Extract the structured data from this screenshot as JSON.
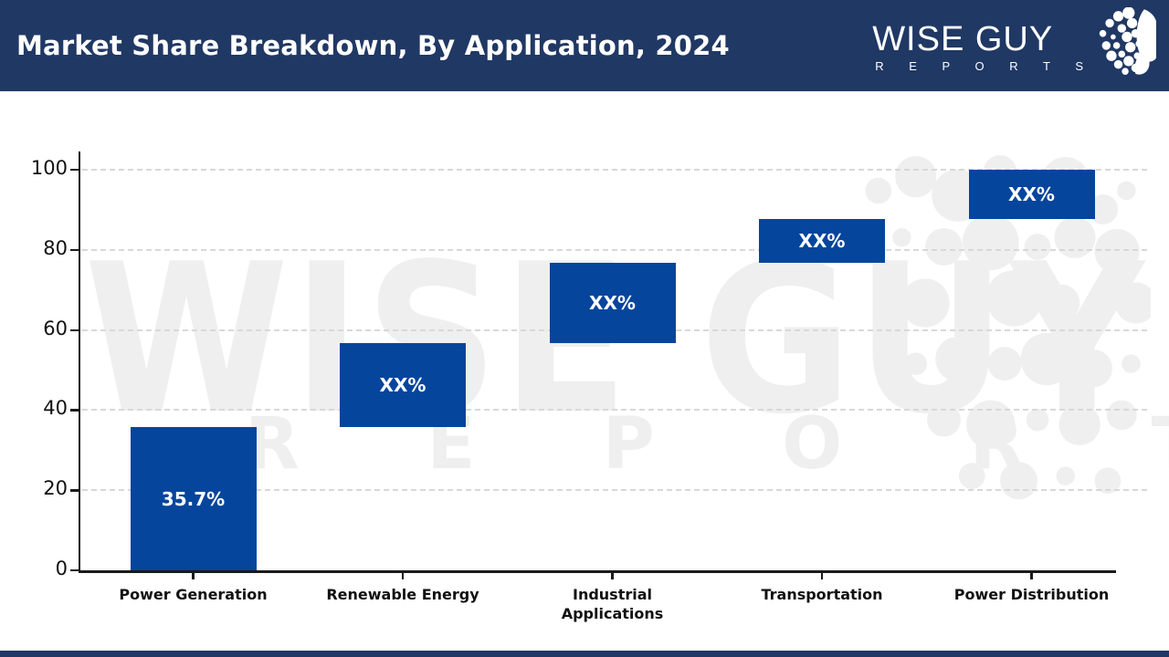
{
  "header": {
    "title": "Market Share Breakdown, By Application, 2024",
    "logo_line1": "WISE GUY",
    "logo_line2": "R E P O R T S"
  },
  "watermark": {
    "line1": "WISE GUY",
    "line2": "R E P O R T S"
  },
  "colors": {
    "header_bg": "#203864",
    "bar": "#06459c",
    "grid": "#d8d8d8",
    "axis": "#1a1a1a",
    "watermark": "#efefef"
  },
  "chart_data": {
    "type": "bar",
    "subtype": "waterfall",
    "title": "Market Share Breakdown, By Application, 2024",
    "xlabel": "",
    "ylabel": "",
    "ylim": [
      0,
      105
    ],
    "yticks": [
      0,
      20,
      40,
      60,
      80,
      100
    ],
    "grid": "horizontal-dashed",
    "legend": "none",
    "categories": [
      "Power Generation",
      "Renewable Energy",
      "Industrial\nApplications",
      "Transportation",
      "Power Distribution"
    ],
    "values": [
      35.7,
      21.0,
      20.1,
      10.9,
      12.3
    ],
    "segments": [
      {
        "category": "Power Generation",
        "start": 0,
        "end": 35.7,
        "label": "35.7%"
      },
      {
        "category": "Renewable Energy",
        "start": 35.7,
        "end": 56.7,
        "label": "XX%"
      },
      {
        "category": "Industrial\nApplications",
        "start": 56.7,
        "end": 76.8,
        "label": "XX%"
      },
      {
        "category": "Transportation",
        "start": 76.8,
        "end": 87.7,
        "label": "XX%"
      },
      {
        "category": "Power Distribution",
        "start": 87.7,
        "end": 100,
        "label": "XX%"
      }
    ],
    "bar_labels": [
      "35.7%",
      "XX%",
      "XX%",
      "XX%",
      "XX%"
    ]
  }
}
